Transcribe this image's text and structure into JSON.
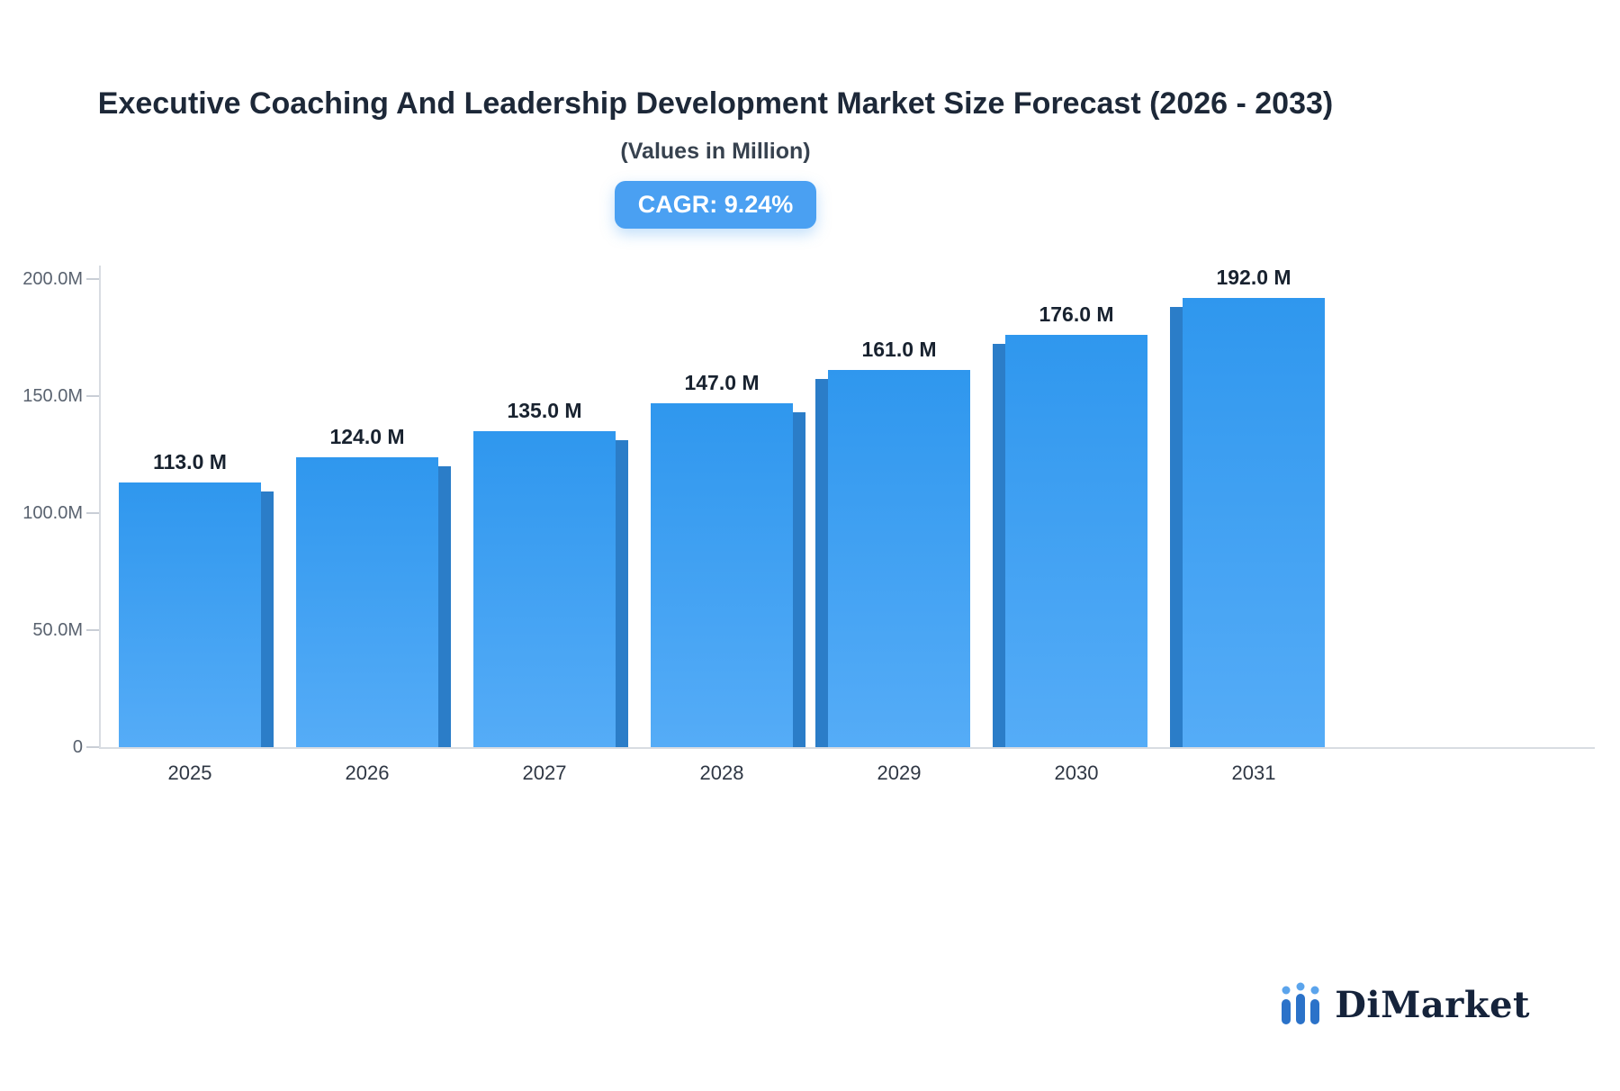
{
  "header": {
    "title": "Executive Coaching And Leadership Development Market Size Forecast (2026 - 2033)",
    "subtitle": "(Values in Million)",
    "cagr_label": "CAGR: 9.24%"
  },
  "chart_data": {
    "type": "bar",
    "title": "Executive Coaching And Leadership Development Market Size Forecast (2026 - 2033)",
    "subtitle": "(Values in Million)",
    "cagr_percent": 9.24,
    "categories": [
      "2025",
      "2026",
      "2027",
      "2028",
      "2029",
      "2030",
      "2031"
    ],
    "values": [
      113,
      124,
      135,
      147,
      161,
      176,
      192
    ],
    "value_labels": [
      "113.0 M",
      "124.0 M",
      "135.0 M",
      "147.0 M",
      "161.0 M",
      "176.0 M",
      "192.0 M"
    ],
    "xlabel": "",
    "ylabel": "",
    "unit": "Million",
    "ylim": [
      0,
      200
    ],
    "yticks": [
      {
        "value": 0,
        "label": "0"
      },
      {
        "value": 50,
        "label": "50.0M"
      },
      {
        "value": 100,
        "label": "100.0M"
      },
      {
        "value": 150,
        "label": "150.0M"
      },
      {
        "value": 200,
        "label": "200.0M"
      }
    ],
    "grid": false,
    "legend": false,
    "colors": {
      "bar_top": "#2f97ee",
      "bar_bottom": "#55acf7",
      "bar_side": "#2b7dc8",
      "badge_bg": "#4aa0f2"
    }
  },
  "footer": {
    "brand": "DiMarket"
  }
}
